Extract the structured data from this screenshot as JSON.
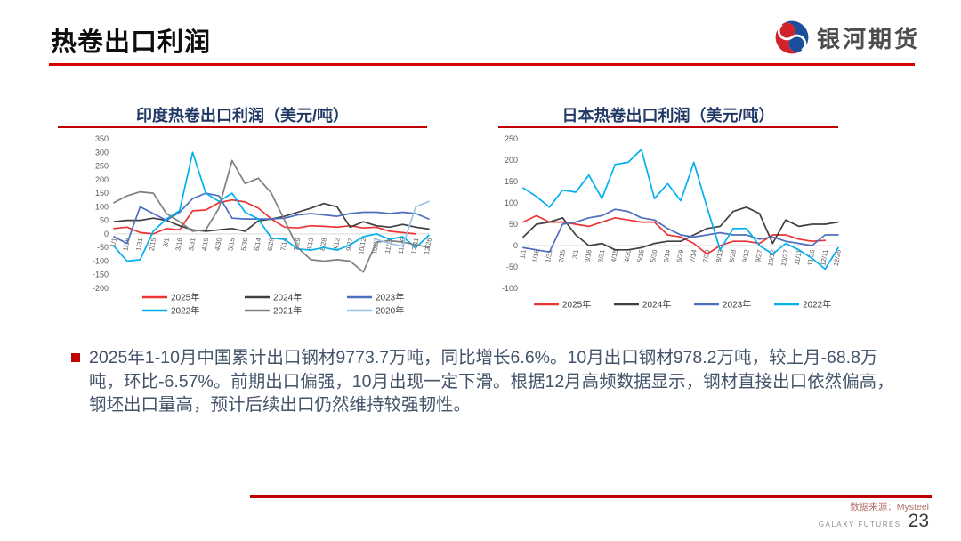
{
  "header": {
    "title": "热卷出口利润"
  },
  "logo": {
    "text": "银河期货",
    "icon": "galaxy-swirl-icon",
    "red": "#d2232a",
    "blue": "#1b4e9b"
  },
  "accent_color": "#c00000",
  "footnote": {
    "text": "2025年1-10月中国累计出口钢材9773.7万吨，同比增长6.6%。10月出口钢材978.2万吨，较上月-68.8万吨，环比-6.57%。前期出口偏强，10月出现一定下滑。根据12月高频数据显示，钢材直接出口依然偏高，钢坯出口量高，预计后续出口仍然维持较强韧性。"
  },
  "footer": {
    "source": "数据来源：Mysteel",
    "brand": "GALAXY FUTURES",
    "page_number": "23"
  },
  "chart_data": [
    {
      "type": "line",
      "title": "印度热卷出口利润（美元/吨）",
      "xlabel": "",
      "ylabel": "",
      "ylim": [
        -200,
        350
      ],
      "ytick": 50,
      "grid": "zero-line-only",
      "legend_position": "bottom",
      "x": [
        "1/1",
        "1/16",
        "1/31",
        "2/15",
        "3/1",
        "3/16",
        "3/31",
        "4/15",
        "4/30",
        "5/15",
        "5/30",
        "6/14",
        "6/29",
        "7/14",
        "7/29",
        "8/13",
        "8/28",
        "9/12",
        "9/27",
        "10/12",
        "10/27",
        "11/11",
        "11/26",
        "12/11",
        "12/26"
      ],
      "series": [
        {
          "name": "2025年",
          "color": "#ed3333",
          "values": [
            20,
            25,
            5,
            0,
            20,
            15,
            85,
            88,
            115,
            125,
            118,
            95,
            55,
            25,
            22,
            30,
            28,
            25,
            30,
            22,
            25,
            10,
            5,
            0,
            null
          ]
        },
        {
          "name": "2024年",
          "color": "#404040",
          "values": [
            45,
            50,
            50,
            58,
            50,
            30,
            15,
            10,
            15,
            20,
            10,
            48,
            55,
            65,
            80,
            95,
            112,
            100,
            25,
            45,
            30,
            25,
            35,
            25,
            18
          ]
        },
        {
          "name": "2023年",
          "color": "#4d6fbd",
          "values": [
            -10,
            -35,
            100,
            75,
            50,
            80,
            130,
            150,
            140,
            58,
            55,
            55,
            55,
            58,
            70,
            75,
            70,
            65,
            75,
            80,
            80,
            75,
            80,
            75,
            55
          ]
        },
        {
          "name": "2022年",
          "color": "#00b0f0",
          "values": [
            -45,
            -100,
            -95,
            10,
            55,
            85,
            300,
            150,
            120,
            150,
            80,
            55,
            -15,
            -20,
            -55,
            -60,
            -50,
            -60,
            -40,
            -10,
            0,
            -20,
            -10,
            -50,
            -5
          ]
        },
        {
          "name": "2021年",
          "color": "#808080",
          "values": [
            115,
            140,
            155,
            150,
            75,
            45,
            10,
            15,
            95,
            270,
            185,
            205,
            150,
            50,
            -50,
            -95,
            -100,
            -95,
            -100,
            -140,
            -30,
            -25,
            -30,
            -40,
            -50
          ]
        },
        {
          "name": "2020年",
          "color": "#9dc3e6",
          "values": [
            null,
            null,
            null,
            null,
            null,
            null,
            null,
            null,
            null,
            null,
            null,
            null,
            null,
            null,
            null,
            null,
            null,
            null,
            null,
            null,
            -20,
            -35,
            -45,
            100,
            120
          ]
        }
      ]
    },
    {
      "type": "line",
      "title": "日本热卷出口利润（美元/吨）",
      "xlabel": "",
      "ylabel": "",
      "ylim": [
        -100,
        250
      ],
      "ytick": 50,
      "grid": "zero-line-only",
      "legend_position": "bottom",
      "x": [
        "1/1",
        "1/16",
        "1/31",
        "2/15",
        "3/1",
        "3/16",
        "3/31",
        "4/15",
        "4/30",
        "5/15",
        "5/30",
        "6/14",
        "6/29",
        "7/14",
        "7/29",
        "8/13",
        "8/28",
        "9/12",
        "9/27",
        "10/12",
        "10/27",
        "11/11",
        "11/26",
        "12/11",
        "12/26"
      ],
      "series": [
        {
          "name": "2025年",
          "color": "#ed3333",
          "values": [
            55,
            70,
            55,
            55,
            50,
            45,
            55,
            65,
            60,
            55,
            55,
            25,
            20,
            5,
            -20,
            0,
            10,
            10,
            5,
            25,
            25,
            15,
            10,
            12,
            null
          ]
        },
        {
          "name": "2024年",
          "color": "#404040",
          "values": [
            20,
            50,
            55,
            65,
            25,
            0,
            5,
            -10,
            -10,
            -5,
            5,
            10,
            10,
            25,
            40,
            45,
            80,
            90,
            75,
            5,
            60,
            45,
            50,
            50,
            55
          ]
        },
        {
          "name": "2023年",
          "color": "#4d6fbd",
          "values": [
            -5,
            -10,
            -15,
            50,
            55,
            65,
            70,
            85,
            80,
            65,
            60,
            40,
            25,
            20,
            25,
            30,
            25,
            25,
            15,
            20,
            10,
            5,
            0,
            25,
            25
          ]
        },
        {
          "name": "2022年",
          "color": "#00b0f0",
          "values": [
            135,
            115,
            90,
            130,
            125,
            165,
            110,
            190,
            195,
            225,
            110,
            145,
            105,
            195,
            90,
            -10,
            40,
            40,
            0,
            -20,
            5,
            -10,
            -30,
            -55,
            -5
          ]
        }
      ]
    }
  ]
}
